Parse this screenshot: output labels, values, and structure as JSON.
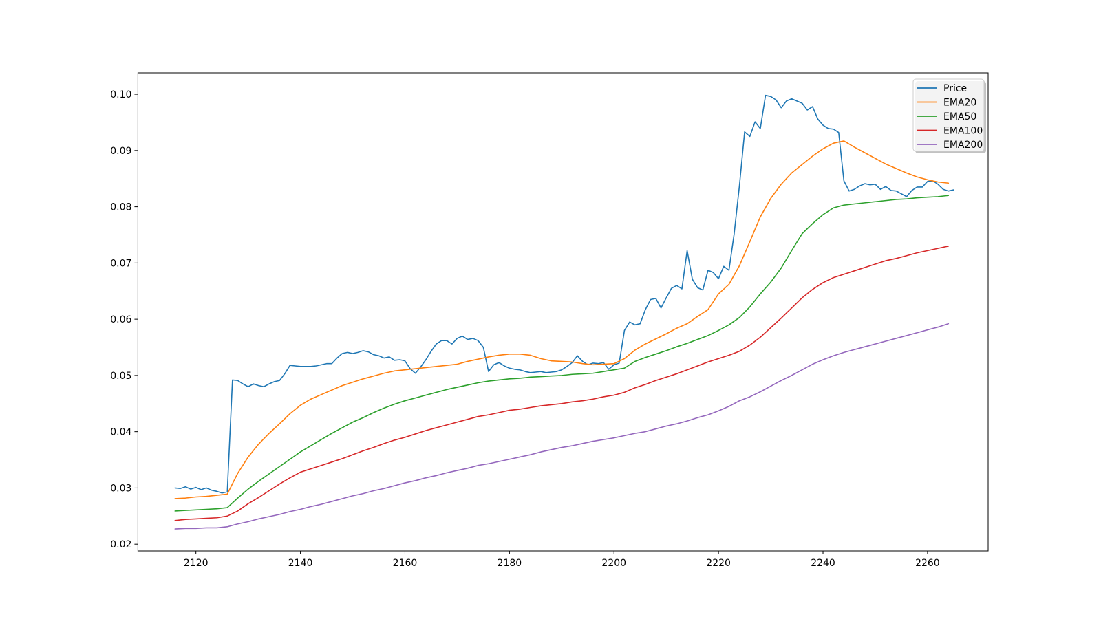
{
  "figure": {
    "background": "#ffffff",
    "spine_color": "#000000",
    "tick_label_color": "#000000",
    "legend_border_color": "#cccccc",
    "legend_bg": "rgba(255,255,255,0.8)"
  },
  "chart_data": {
    "type": "line",
    "title": "",
    "xlabel": "",
    "ylabel": "",
    "xlim": [
      2108.9,
      2271.6
    ],
    "ylim": [
      0.0188,
      0.1038
    ],
    "x_ticks": [
      2120,
      2140,
      2160,
      2180,
      2200,
      2220,
      2240,
      2260
    ],
    "y_ticks": [
      0.02,
      0.03,
      0.04,
      0.05,
      0.06,
      0.07,
      0.08,
      0.09,
      0.1
    ],
    "grid": false,
    "legend": {
      "position": "upper right",
      "entries": [
        "Price",
        "EMA20",
        "EMA50",
        "EMA100",
        "EMA200"
      ]
    },
    "series": [
      {
        "name": "Price",
        "color": "#1f77b4",
        "x_start": 2116,
        "x_step": 1,
        "y": [
          0.03,
          0.0299,
          0.0302,
          0.0298,
          0.0301,
          0.0297,
          0.03,
          0.0296,
          0.0294,
          0.0291,
          0.0293,
          0.0492,
          0.0491,
          0.0485,
          0.048,
          0.0485,
          0.0482,
          0.048,
          0.0485,
          0.0489,
          0.0491,
          0.0503,
          0.0518,
          0.0517,
          0.0516,
          0.0516,
          0.0516,
          0.0517,
          0.0519,
          0.0521,
          0.0521,
          0.0531,
          0.0539,
          0.0541,
          0.0539,
          0.0541,
          0.0544,
          0.0542,
          0.0537,
          0.0535,
          0.0531,
          0.0533,
          0.0527,
          0.0528,
          0.0526,
          0.0512,
          0.0504,
          0.0515,
          0.0528,
          0.0543,
          0.0556,
          0.0562,
          0.0562,
          0.0556,
          0.0566,
          0.057,
          0.0564,
          0.0566,
          0.0562,
          0.055,
          0.0507,
          0.0519,
          0.0523,
          0.0517,
          0.0513,
          0.0511,
          0.051,
          0.0507,
          0.0505,
          0.0506,
          0.0507,
          0.0505,
          0.0506,
          0.0507,
          0.051,
          0.0516,
          0.0523,
          0.0535,
          0.0525,
          0.0519,
          0.0522,
          0.0521,
          0.0523,
          0.0511,
          0.0519,
          0.0522,
          0.058,
          0.0595,
          0.059,
          0.0592,
          0.0617,
          0.0635,
          0.0637,
          0.062,
          0.0638,
          0.0655,
          0.066,
          0.0654,
          0.0722,
          0.0671,
          0.0656,
          0.0652,
          0.0687,
          0.0683,
          0.0672,
          0.0694,
          0.0687,
          0.0752,
          0.0837,
          0.0933,
          0.0925,
          0.0951,
          0.0939,
          0.0998,
          0.0996,
          0.099,
          0.0976,
          0.0988,
          0.0992,
          0.0988,
          0.0984,
          0.0972,
          0.0978,
          0.0956,
          0.0945,
          0.0939,
          0.0938,
          0.0932,
          0.0846,
          0.0828,
          0.0831,
          0.0837,
          0.0841,
          0.0839,
          0.084,
          0.0831,
          0.0836,
          0.0829,
          0.0828,
          0.0823,
          0.0818,
          0.0829,
          0.0835,
          0.0835,
          0.0845,
          0.0846,
          0.084,
          0.0831,
          0.0828,
          0.083
        ]
      },
      {
        "name": "EMA20",
        "color": "#ff7f0e",
        "x_start": 2116,
        "x_step": 2,
        "y": [
          0.0281,
          0.0282,
          0.0284,
          0.0285,
          0.0287,
          0.0289,
          0.0326,
          0.0355,
          0.0378,
          0.0397,
          0.0414,
          0.0432,
          0.0447,
          0.0458,
          0.0466,
          0.0474,
          0.0482,
          0.0488,
          0.0494,
          0.0499,
          0.0504,
          0.0508,
          0.051,
          0.0512,
          0.0514,
          0.0516,
          0.0518,
          0.052,
          0.0525,
          0.0529,
          0.0533,
          0.0536,
          0.0538,
          0.0538,
          0.0536,
          0.053,
          0.0526,
          0.0525,
          0.0524,
          0.0521,
          0.0519,
          0.052,
          0.0521,
          0.053,
          0.0545,
          0.0556,
          0.0565,
          0.0574,
          0.0584,
          0.0592,
          0.0605,
          0.0617,
          0.0645,
          0.0662,
          0.0695,
          0.0738,
          0.0782,
          0.0815,
          0.084,
          0.086,
          0.0875,
          0.089,
          0.0903,
          0.0913,
          0.0917,
          0.0906,
          0.0896,
          0.0886,
          0.0876,
          0.0868,
          0.086,
          0.0853,
          0.0848,
          0.0844,
          0.0842
        ]
      },
      {
        "name": "EMA50",
        "color": "#2ca02c",
        "x_start": 2116,
        "x_step": 2,
        "y": [
          0.0259,
          0.026,
          0.0261,
          0.0262,
          0.0263,
          0.0265,
          0.0282,
          0.0298,
          0.0312,
          0.0325,
          0.0338,
          0.0351,
          0.0364,
          0.0375,
          0.0386,
          0.0397,
          0.0407,
          0.0417,
          0.0425,
          0.0434,
          0.0442,
          0.0449,
          0.0455,
          0.046,
          0.0465,
          0.047,
          0.0475,
          0.0479,
          0.0483,
          0.0487,
          0.049,
          0.0492,
          0.0494,
          0.0495,
          0.0497,
          0.0498,
          0.0499,
          0.05,
          0.0502,
          0.0503,
          0.0504,
          0.0507,
          0.051,
          0.0513,
          0.0525,
          0.0532,
          0.0538,
          0.0544,
          0.0551,
          0.0557,
          0.0564,
          0.0571,
          0.058,
          0.059,
          0.0603,
          0.0622,
          0.0645,
          0.0666,
          0.0691,
          0.0722,
          0.0752,
          0.077,
          0.0786,
          0.0798,
          0.0803,
          0.0805,
          0.0807,
          0.0809,
          0.0811,
          0.0813,
          0.0814,
          0.0816,
          0.0817,
          0.0818,
          0.082
        ]
      },
      {
        "name": "EMA100",
        "color": "#d62728",
        "x_start": 2116,
        "x_step": 2,
        "y": [
          0.0242,
          0.0244,
          0.0245,
          0.0246,
          0.0247,
          0.025,
          0.0259,
          0.0272,
          0.0283,
          0.0295,
          0.0307,
          0.0318,
          0.0328,
          0.0334,
          0.034,
          0.0346,
          0.0352,
          0.0359,
          0.0366,
          0.0372,
          0.0379,
          0.0385,
          0.039,
          0.0396,
          0.0402,
          0.0407,
          0.0412,
          0.0417,
          0.0422,
          0.0427,
          0.043,
          0.0434,
          0.0438,
          0.044,
          0.0443,
          0.0446,
          0.0448,
          0.045,
          0.0453,
          0.0455,
          0.0458,
          0.0462,
          0.0465,
          0.047,
          0.0478,
          0.0484,
          0.0491,
          0.0497,
          0.0503,
          0.051,
          0.0517,
          0.0524,
          0.053,
          0.0536,
          0.0543,
          0.0554,
          0.0568,
          0.0585,
          0.0602,
          0.062,
          0.0638,
          0.0653,
          0.0665,
          0.0674,
          0.068,
          0.0686,
          0.0692,
          0.0698,
          0.0704,
          0.0708,
          0.0713,
          0.0718,
          0.0722,
          0.0726,
          0.073
        ]
      },
      {
        "name": "EMA200",
        "color": "#9467bd",
        "x_start": 2116,
        "x_step": 2,
        "y": [
          0.0227,
          0.0228,
          0.0228,
          0.0229,
          0.0229,
          0.0231,
          0.0236,
          0.024,
          0.0245,
          0.0249,
          0.0253,
          0.0258,
          0.0262,
          0.0267,
          0.0271,
          0.0276,
          0.0281,
          0.0286,
          0.029,
          0.0295,
          0.0299,
          0.0304,
          0.0309,
          0.0313,
          0.0318,
          0.0322,
          0.0327,
          0.0331,
          0.0335,
          0.034,
          0.0343,
          0.0347,
          0.0351,
          0.0355,
          0.0359,
          0.0364,
          0.0368,
          0.0372,
          0.0375,
          0.0379,
          0.0383,
          0.0386,
          0.0389,
          0.0393,
          0.0397,
          0.04,
          0.0405,
          0.041,
          0.0414,
          0.0419,
          0.0425,
          0.043,
          0.0437,
          0.0445,
          0.0455,
          0.0462,
          0.0471,
          0.0481,
          0.0491,
          0.05,
          0.051,
          0.052,
          0.0528,
          0.0535,
          0.0541,
          0.0546,
          0.0551,
          0.0556,
          0.0561,
          0.0566,
          0.0571,
          0.0576,
          0.0581,
          0.0586,
          0.0592
        ]
      }
    ]
  }
}
